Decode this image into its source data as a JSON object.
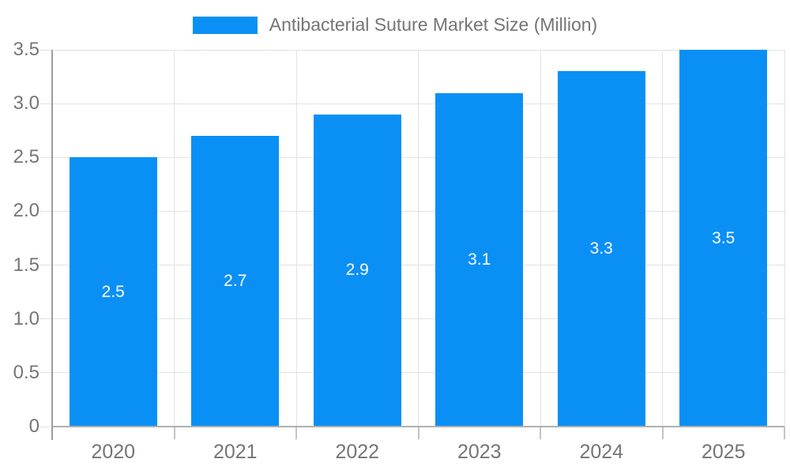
{
  "legend": {
    "label": "Antibacterial Suture Market Size (Million)"
  },
  "chart_data": {
    "type": "bar",
    "title": "",
    "xlabel": "",
    "ylabel": "",
    "categories": [
      "2020",
      "2021",
      "2022",
      "2023",
      "2024",
      "2025"
    ],
    "values": [
      2.5,
      2.7,
      2.9,
      3.1,
      3.3,
      3.5
    ],
    "bar_labels": [
      "2.5",
      "2.7",
      "2.9",
      "3.1",
      "3.3",
      "3.5"
    ],
    "series_name": "Antibacterial Suture Market Size (Million)",
    "ylim": [
      0,
      3.5
    ],
    "yticks": [
      0,
      0.5,
      1,
      1.5,
      2,
      2.5,
      3,
      3.5
    ],
    "ytick_labels": [
      "0",
      "0.5",
      "1.0",
      "1.5",
      "2.0",
      "2.5",
      "3.0",
      "3.5"
    ],
    "grid": true,
    "legend_position": "top",
    "colors": {
      "bar": "#0a90f5",
      "bar_value_text": "#ffffff",
      "tick_text": "#757575",
      "gridline": "#e2e2e2",
      "y_axis_line": "#9e9e9e",
      "x_axis_line": "#b0b0b0",
      "x_tick": "#c4c4c4"
    }
  }
}
